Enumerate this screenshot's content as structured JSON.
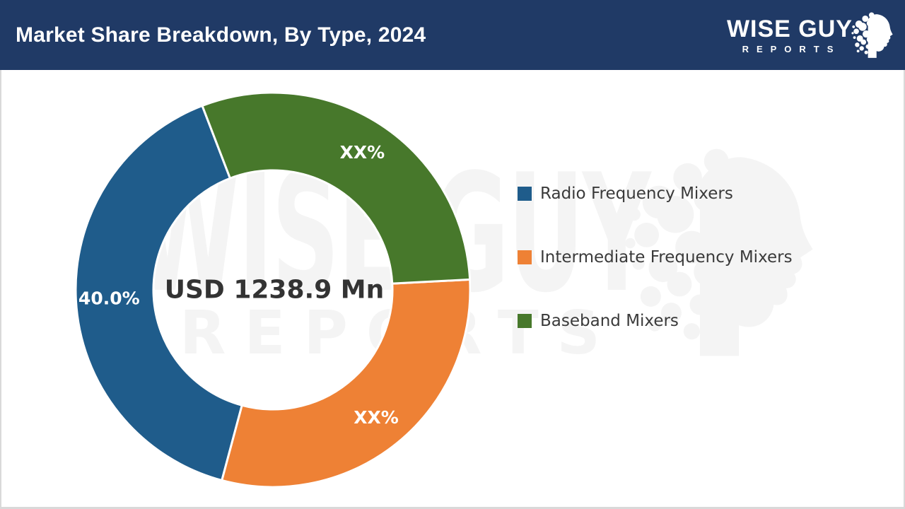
{
  "header": {
    "title": "Market Share Breakdown, By Type, 2024",
    "logo": {
      "line1": "WISE GUY",
      "line2": "REPORTS",
      "face_icon": "head-profile-dots-icon"
    }
  },
  "watermark": {
    "line1": "WISE GUY",
    "line2": "REPORTS",
    "face_icon": "head-profile-dots-icon"
  },
  "chart_data": {
    "type": "pie",
    "subtype": "donut",
    "title": "Market Share Breakdown, By Type, 2024",
    "center_label": "USD 1238.9 Mn",
    "legend_position": "right",
    "donut": {
      "start_angle": 111,
      "direction": "ccw",
      "outer_radius": 279,
      "inner_radius": 169,
      "label_radius": 232
    },
    "segments": [
      {
        "label": "Radio Frequency Mixers",
        "value_pct": 40.0,
        "display": "40.0%",
        "color": "#1F5C8B"
      },
      {
        "label": "Intermediate Frequency Mixers",
        "value_pct": 30.0,
        "display": "XX%",
        "color": "#EE8135"
      },
      {
        "label": "Baseband Mixers",
        "value_pct": 30.0,
        "display": "XX%",
        "color": "#47782B"
      }
    ]
  },
  "colors": {
    "header_bg": "#203A66",
    "border": "#D9D9D9",
    "watermark": "#F4F4F4",
    "center_text": "#333333",
    "legend_text": "#3A3A3A",
    "segment_label_text": "#FFFFFF"
  }
}
